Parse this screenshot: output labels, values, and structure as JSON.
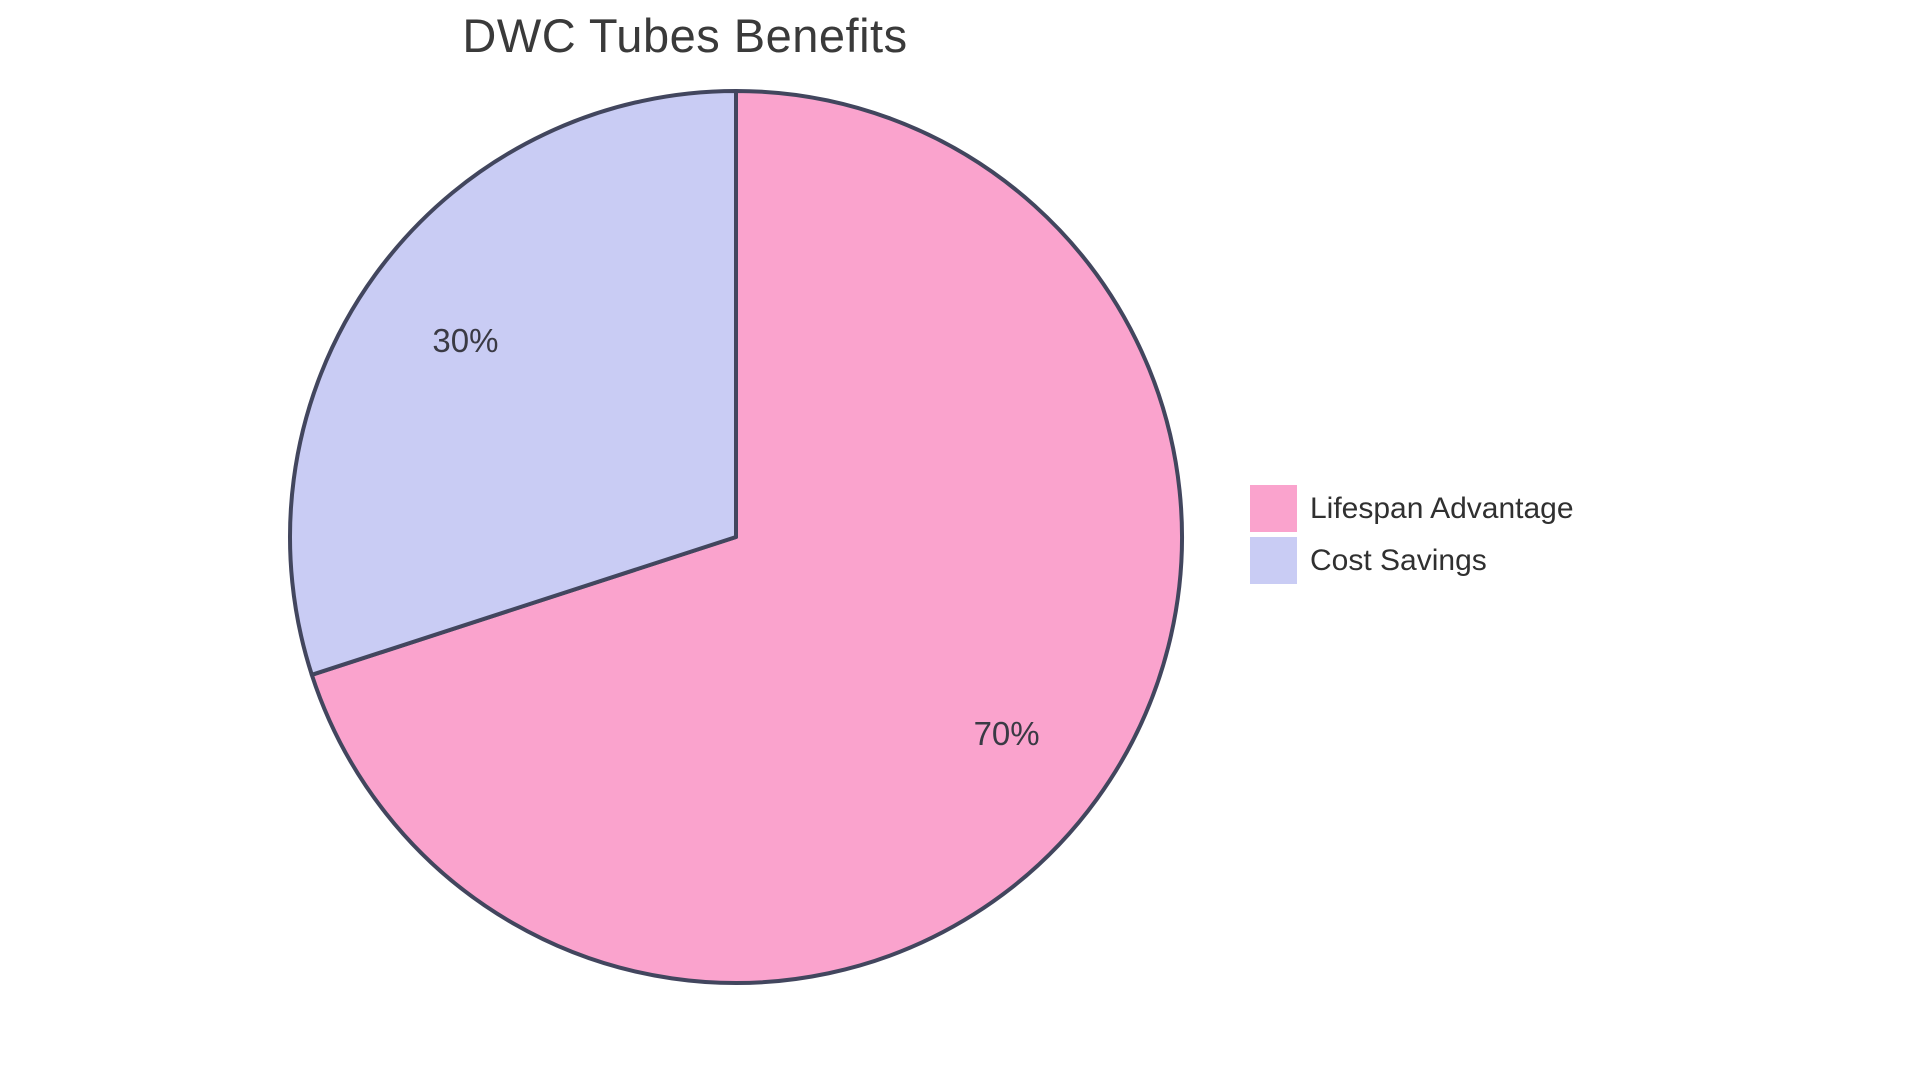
{
  "chart_data": {
    "type": "pie",
    "title": "DWC Tubes Benefits",
    "labels": [
      "Lifespan Advantage",
      "Cost Savings"
    ],
    "values": [
      70,
      30
    ],
    "value_labels": [
      "70%",
      "30%"
    ],
    "colors": [
      "#FAA3CD",
      "#C9CCF4"
    ],
    "stroke_color": "#42465E",
    "stroke_width": 4,
    "background_color": "#FFFFFF",
    "title_color": "#3A3A3A",
    "value_label_color": "#3A3A44",
    "start_angle_deg": 0,
    "direction": "clockwise",
    "legend_position": "right"
  }
}
